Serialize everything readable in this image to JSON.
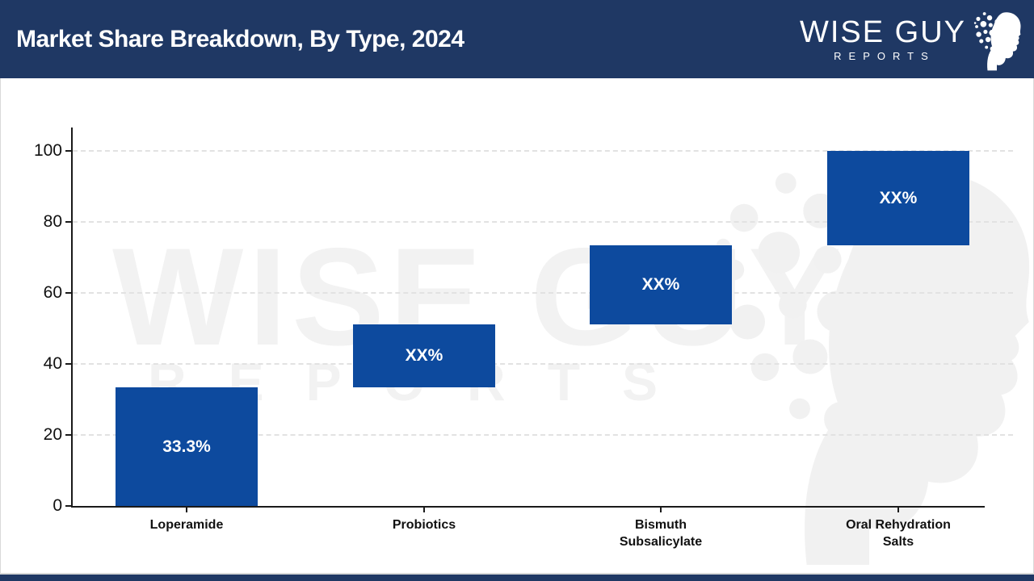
{
  "header": {
    "title": "Market Share Breakdown, By Type, 2024",
    "logo": {
      "wordmark": "WISE GUY",
      "sub": "REPORTS"
    }
  },
  "watermark": {
    "line1": "WISE GUY",
    "line2": "REPORTS"
  },
  "theme": {
    "header_bg": "#1f3864",
    "footer_bg": "#1f3864",
    "bar_color": "#0d4a9e",
    "bar_label_color": "#ffffff",
    "grid_color": "#e2e2e2",
    "watermark_color": "#f2f2f2"
  },
  "chart_data": {
    "type": "bar",
    "subtype": "floating-waterfall-percent",
    "title": "Market Share Breakdown, By Type, 2024",
    "categories": [
      "Loperamide",
      "Probiotics",
      "Bismuth Subsalicylate",
      "Oral Rehydration Salts"
    ],
    "category_label_lines": [
      [
        "Loperamide"
      ],
      [
        "Probiotics"
      ],
      [
        "Bismuth",
        "Subsalicylate"
      ],
      [
        "Oral Rehydration",
        "Salts"
      ]
    ],
    "segments": [
      {
        "category": "Loperamide",
        "start": 0,
        "end": 33.3,
        "label": "33.3%"
      },
      {
        "category": "Probiotics",
        "start": 33.3,
        "end": 51.2,
        "label": "XX%"
      },
      {
        "category": "Bismuth Subsalicylate",
        "start": 51.2,
        "end": 73.4,
        "label": "XX%"
      },
      {
        "category": "Oral Rehydration Salts",
        "start": 73.4,
        "end": 100,
        "label": "XX%"
      }
    ],
    "y_ticks": [
      0,
      20,
      40,
      60,
      80,
      100
    ],
    "ylim": [
      0,
      105
    ],
    "xlabel": "",
    "ylabel": "",
    "grid": "dashed-horizontal",
    "legend": "none"
  }
}
